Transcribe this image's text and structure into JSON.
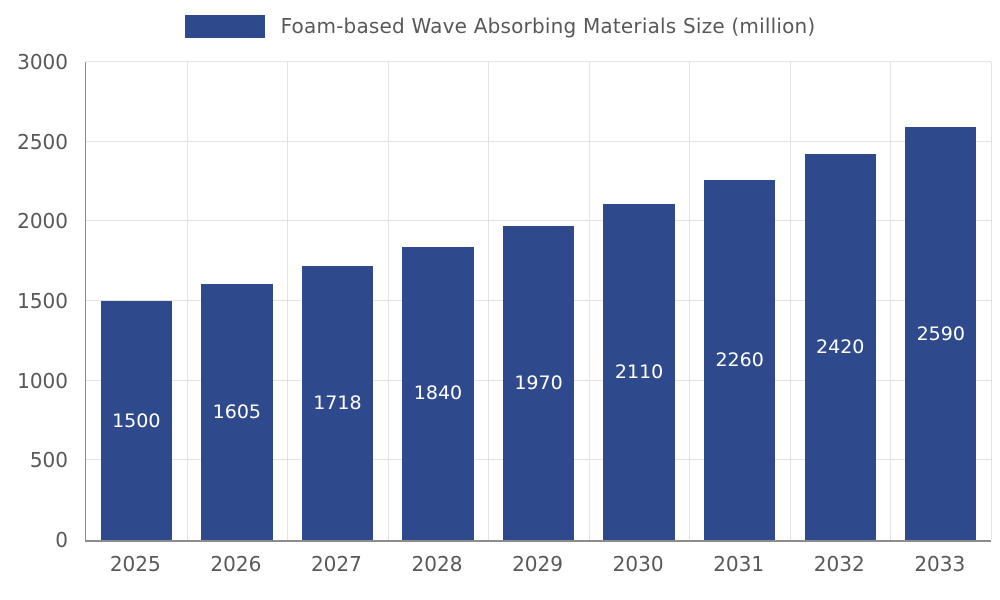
{
  "legend": {
    "label": "Foam-based Wave Absorbing Materials Size (million)",
    "swatch_color": "#2f4a8c"
  },
  "chart_data": {
    "type": "bar",
    "title": "Foam-based Wave Absorbing Materials Size (million)",
    "categories": [
      "2025",
      "2026",
      "2027",
      "2028",
      "2029",
      "2030",
      "2031",
      "2032",
      "2033"
    ],
    "values": [
      1500,
      1605,
      1718,
      1840,
      1970,
      2110,
      2260,
      2420,
      2590
    ],
    "xlabel": "",
    "ylabel": "",
    "ylim": [
      0,
      3000
    ],
    "ytick_step": 500,
    "grid": true,
    "legend_position": "top",
    "bar_color": "#2f4a8c",
    "value_label_color": "#ffffff",
    "value_labels_inside": true
  }
}
